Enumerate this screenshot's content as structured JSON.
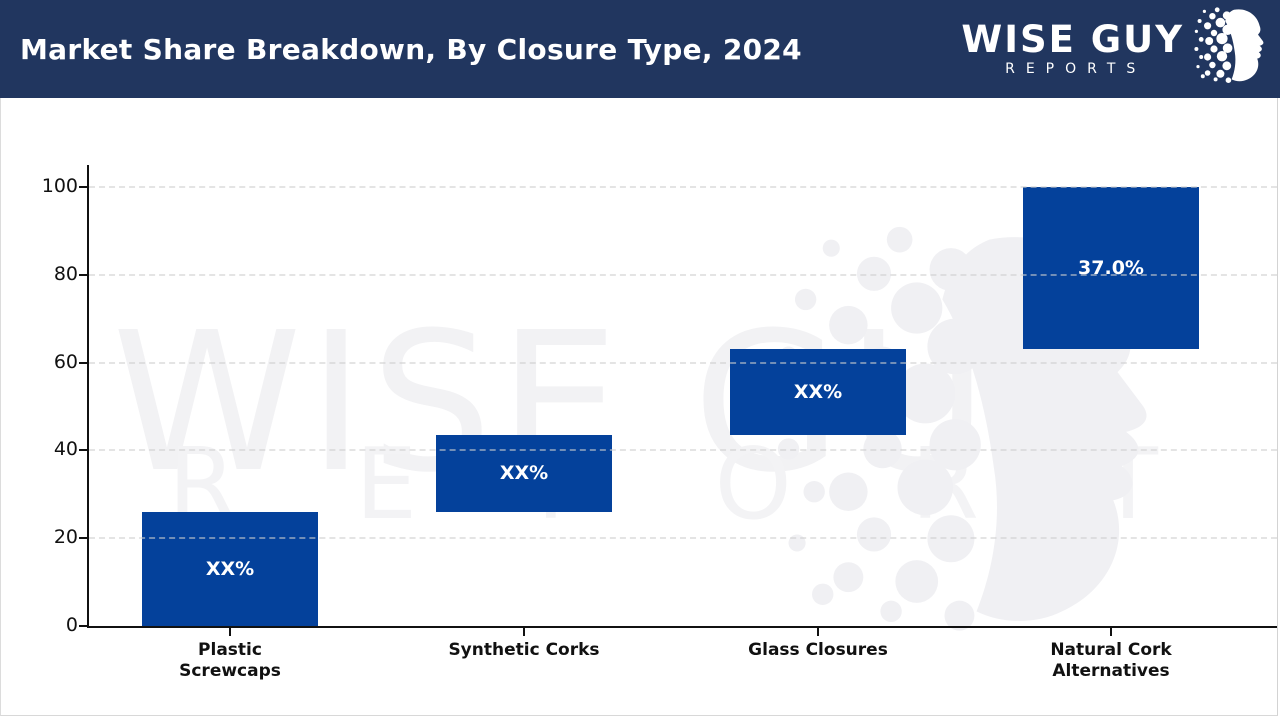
{
  "header": {
    "title": "Market Share Breakdown, By Closure Type, 2024",
    "logo": {
      "line1": "WISE GUY",
      "line2": "REPORTS"
    }
  },
  "watermark": {
    "line1": "WISE GUY",
    "line2": "R E P O R T S"
  },
  "chart_data": {
    "type": "bar",
    "subtype": "waterfall",
    "title": "Market Share Breakdown, By Closure Type, 2024",
    "categories": [
      "Plastic Screwcaps",
      "Synthetic Corks",
      "Glass Closures",
      "Natural Cork Alternatives"
    ],
    "segments": [
      {
        "category": "Plastic Screwcaps",
        "start": 0,
        "end": 26,
        "label": "XX%"
      },
      {
        "category": "Synthetic Corks",
        "start": 26,
        "end": 43.5,
        "label": "XX%"
      },
      {
        "category": "Glass Closures",
        "start": 43.5,
        "end": 63,
        "label": "XX%"
      },
      {
        "category": "Natural Cork Alternatives",
        "start": 63,
        "end": 100,
        "label": "37.0%"
      }
    ],
    "xlabel": "",
    "ylabel": "",
    "ylim": [
      0,
      100
    ],
    "yticks": [
      0,
      20,
      40,
      60,
      80,
      100
    ],
    "grid": "horizontal-dashed",
    "legend": "none",
    "bar_color": "#04419B",
    "bar_label_color": "#ffffff",
    "axis_color": "#111111"
  },
  "colors": {
    "header_bg": "#21365F",
    "bar": "#04419B",
    "grid": "#cfcfcf",
    "watermark": "#f2f2f4",
    "title_text": "#ffffff"
  }
}
